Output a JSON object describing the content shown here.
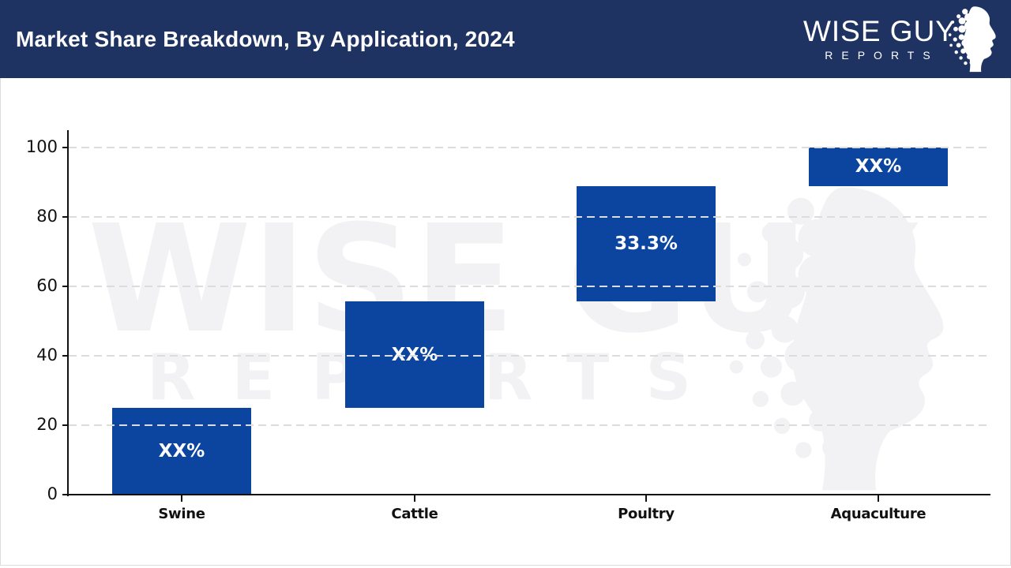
{
  "header": {
    "title": "Market Share Breakdown, By Application, 2024",
    "logo": {
      "line1": "WISE GUY",
      "line2": "REPORTS"
    }
  },
  "watermark": {
    "line1": "WISE GUY",
    "line2": "REPORTS"
  },
  "chart_data": {
    "type": "bar",
    "subtype": "waterfall-stacked-breakdown",
    "title": "Market Share Breakdown, By Application, 2024",
    "categories": [
      "Swine",
      "Cattle",
      "Poultry",
      "Aquaculture"
    ],
    "segments": [
      {
        "category": "Swine",
        "start": 0,
        "end": 25.0,
        "value": 25.0,
        "label": "XX%"
      },
      {
        "category": "Cattle",
        "start": 25.0,
        "end": 55.6,
        "value": 30.6,
        "label": "XX%"
      },
      {
        "category": "Poultry",
        "start": 55.6,
        "end": 88.9,
        "value": 33.3,
        "label": "33.3%"
      },
      {
        "category": "Aquaculture",
        "start": 88.9,
        "end": 100,
        "value": 11.1,
        "label": "XX%"
      }
    ],
    "xlabel": "",
    "ylabel": "",
    "ylim": [
      0,
      100
    ],
    "yticks": [
      0,
      20,
      40,
      60,
      80,
      100
    ],
    "grid": "horizontal-dashed-over-bars",
    "legend": "none",
    "bar_color": "#0c45a0",
    "label_color": "#ffffff"
  },
  "colors": {
    "header_bg": "#1e3362",
    "title_text": "#ffffff",
    "bar": "#0c45a0",
    "bar_label": "#ffffff",
    "gridline": "#dcdcdc",
    "axis": "#111111",
    "tick_text": "#111111",
    "watermark": "#f2f2f4",
    "body_border": "#dcdcdc",
    "background": "#ffffff"
  }
}
